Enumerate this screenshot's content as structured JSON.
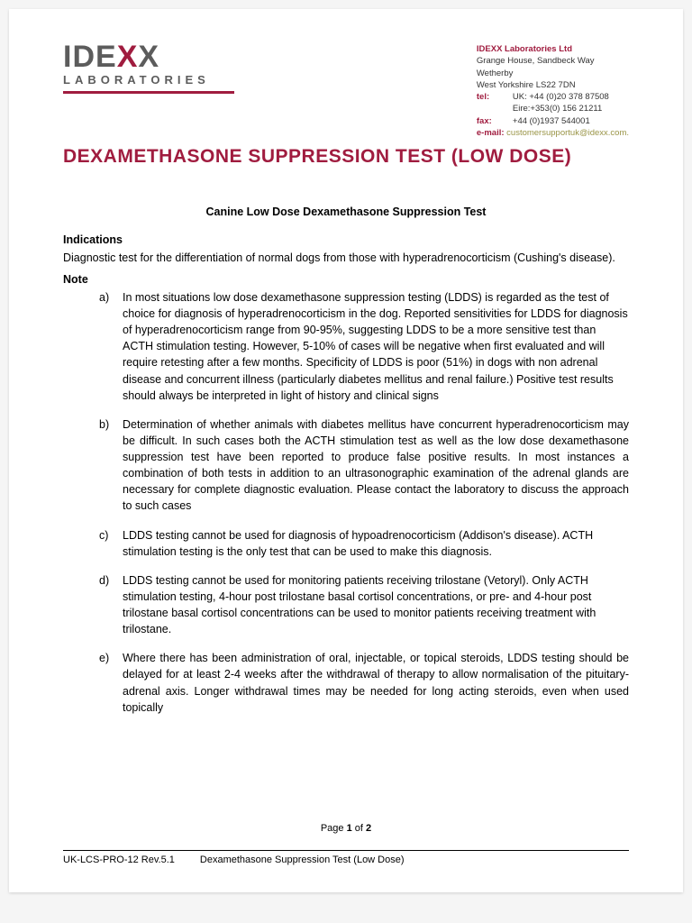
{
  "logo": {
    "brand_pre": "IDE",
    "brand_mid": "X",
    "brand_suf": "X",
    "sub": "LABORATORIES"
  },
  "contact": {
    "company": "IDEXX Laboratories Ltd",
    "addr1": "Grange House, Sandbeck Way",
    "addr2": "Wetherby",
    "addr3": "West Yorkshire LS22 7DN",
    "tel_label": "tel:",
    "tel_uk": "UK: +44 (0)20 378 87508",
    "tel_eire": "Eire:+353(0) 156 21211",
    "fax_label": "fax:",
    "fax": "+44 (0)1937 544001",
    "email_label": "e-mail:",
    "email": "customersupportuk@idexx.com."
  },
  "title": "DEXAMETHASONE SUPPRESSION TEST (LOW DOSE)",
  "subtitle": "Canine Low Dose Dexamethasone Suppression Test",
  "indications_head": "Indications",
  "indications_text": "Diagnostic test for the differentiation of normal dogs from those with hyperadrenocorticism (Cushing's disease).",
  "note_head": "Note",
  "notes": {
    "a": "In most situations low dose dexamethasone suppression testing (LDDS) is regarded as the test of choice for diagnosis of hyperadrenocorticism in the dog.  Reported sensitivities for LDDS for diagnosis of hyperadrenocorticism range from 90-95%, suggesting LDDS to be a more sensitive test than ACTH stimulation testing.  However, 5-10% of cases will be negative when first evaluated and will require retesting after a few months.  Specificity of LDDS is poor (51%) in dogs with non adrenal disease and concurrent illness (particularly diabetes mellitus and renal failure.)  Positive test results should always be interpreted in light of history and clinical signs",
    "b": "Determination of whether animals with diabetes mellitus have concurrent hyperadrenocorticism may be difficult. In such cases both the ACTH stimulation test as well as the low dose dexamethasone suppression test have been reported to produce false positive results.  In most instances a combination of both tests in addition to an ultrasonographic examination of the adrenal glands are necessary for complete diagnostic evaluation. Please contact the laboratory to discuss the approach to such cases",
    "c": "LDDS testing cannot be used for diagnosis of hypoadrenocorticism (Addison's disease).  ACTH stimulation testing is the only test that can be used to make this diagnosis.",
    "d": "LDDS testing cannot be used for monitoring patients receiving trilostane (Vetoryl).  Only ACTH stimulation testing, 4-hour post trilostane basal cortisol concentrations, or pre- and 4-hour post trilostane basal cortisol concentrations can be used to monitor patients receiving treatment with trilostane.",
    "e": "Where there has been administration of oral, injectable, or topical steroids, LDDS testing should be delayed for at least 2-4 weeks after the withdrawal of therapy to allow normalisation of the pituitary-adrenal axis.  Longer withdrawal times may be needed for long acting steroids, even when used topically"
  },
  "markers": {
    "a": "a)",
    "b": "b)",
    "c": "c)",
    "d": "d)",
    "e": "e)"
  },
  "footer": {
    "page_label_pre": "Page ",
    "page_num": "1",
    "page_of": " of ",
    "page_total": "2",
    "docid": "UK-LCS-PRO-12 Rev.5.1",
    "docname": "Dexamethasone Suppression Test (Low Dose)"
  }
}
